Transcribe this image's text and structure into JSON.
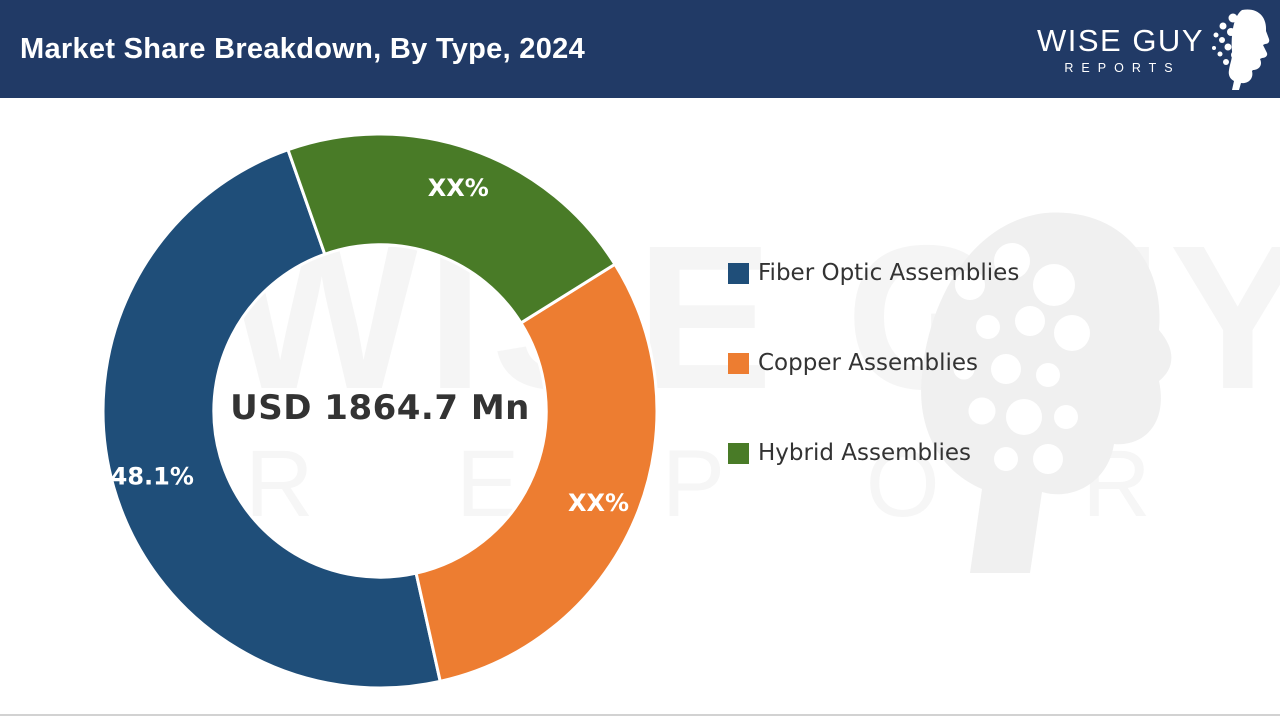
{
  "header": {
    "title": "Market Share Breakdown, By Type, 2024",
    "logo": {
      "name": "WISE GUY",
      "tagline": "REPORTS"
    }
  },
  "chart_data": {
    "type": "pie",
    "subtype": "donut",
    "title": "Market Share Breakdown, By Type, 2024",
    "center_label": "USD 1864.7 Mn",
    "start_angle_deg": 109.4,
    "direction": "counterclockwise",
    "inner_radius_ratio": 0.6,
    "legend_position": "right",
    "categories": [
      "Fiber Optic Assemblies",
      "Copper Assemblies",
      "Hybrid Assemblies"
    ],
    "values": [
      48.1,
      30.4,
      21.5
    ],
    "segments": [
      {
        "name": "Fiber Optic Assemblies",
        "value_pct": 48.1,
        "label": "48.1%",
        "color": "#1F4E79"
      },
      {
        "name": "Copper Assemblies",
        "value_pct": 30.4,
        "label": "XX%",
        "color": "#ED7D31"
      },
      {
        "name": "Hybrid Assemblies",
        "value_pct": 21.5,
        "label": "XX%",
        "color": "#497B27"
      }
    ]
  },
  "watermark": {
    "line1": "WISE GUY",
    "line2": "R E P O R T S"
  },
  "colors": {
    "header_bg": "#213A66",
    "text_dark": "#333333",
    "accent_white": "#ffffff"
  }
}
